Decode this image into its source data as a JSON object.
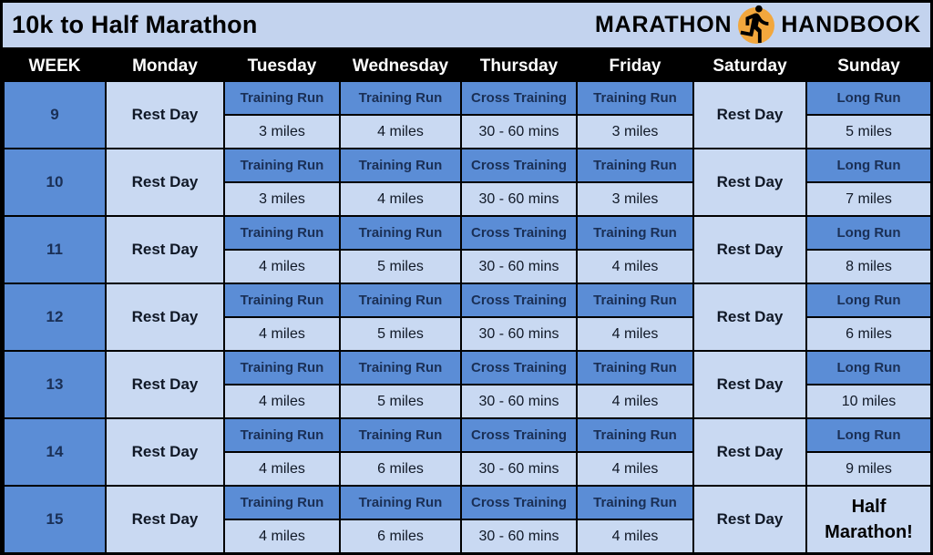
{
  "title": "10k to Half Marathon",
  "logo": {
    "left": "MARATHON",
    "right": "HANDBOOK",
    "icon": "runner-icon"
  },
  "columns": [
    "WEEK",
    "Monday",
    "Tuesday",
    "Wednesday",
    "Thursday",
    "Friday",
    "Saturday",
    "Sunday"
  ],
  "colors": {
    "title_bg": "#c3d3ee",
    "header_bg": "#000000",
    "header_text": "#ffffff",
    "medium_blue": "#5b8dd6",
    "light_blue": "#c9d9f2",
    "navy_text": "#1a2f55",
    "dark_text": "#101826",
    "logo_circle": "#f2a73d",
    "border": "#000000"
  },
  "weeks": [
    {
      "week": "9",
      "monday": "Rest Day",
      "tuesday": {
        "activity": "Training Run",
        "detail": "3 miles"
      },
      "wednesday": {
        "activity": "Training Run",
        "detail": "4 miles"
      },
      "thursday": {
        "activity": "Cross Training",
        "detail": "30 - 60 mins"
      },
      "friday": {
        "activity": "Training Run",
        "detail": "3 miles"
      },
      "saturday": "Rest Day",
      "sunday": {
        "activity": "Long Run",
        "detail": "5 miles"
      }
    },
    {
      "week": "10",
      "monday": "Rest Day",
      "tuesday": {
        "activity": "Training Run",
        "detail": "3 miles"
      },
      "wednesday": {
        "activity": "Training Run",
        "detail": "4 miles"
      },
      "thursday": {
        "activity": "Cross Training",
        "detail": "30 - 60 mins"
      },
      "friday": {
        "activity": "Training Run",
        "detail": "3 miles"
      },
      "saturday": "Rest Day",
      "sunday": {
        "activity": "Long Run",
        "detail": "7 miles"
      }
    },
    {
      "week": "11",
      "monday": "Rest Day",
      "tuesday": {
        "activity": "Training Run",
        "detail": "4 miles"
      },
      "wednesday": {
        "activity": "Training Run",
        "detail": "5 miles"
      },
      "thursday": {
        "activity": "Cross Training",
        "detail": "30 - 60 mins"
      },
      "friday": {
        "activity": "Training Run",
        "detail": "4 miles"
      },
      "saturday": "Rest Day",
      "sunday": {
        "activity": "Long Run",
        "detail": "8 miles"
      }
    },
    {
      "week": "12",
      "monday": "Rest Day",
      "tuesday": {
        "activity": "Training Run",
        "detail": "4 miles"
      },
      "wednesday": {
        "activity": "Training Run",
        "detail": "5 miles"
      },
      "thursday": {
        "activity": "Cross Training",
        "detail": "30 - 60 mins"
      },
      "friday": {
        "activity": "Training Run",
        "detail": "4 miles"
      },
      "saturday": "Rest Day",
      "sunday": {
        "activity": "Long Run",
        "detail": "6 miles"
      }
    },
    {
      "week": "13",
      "monday": "Rest Day",
      "tuesday": {
        "activity": "Training Run",
        "detail": "4 miles"
      },
      "wednesday": {
        "activity": "Training Run",
        "detail": "5 miles"
      },
      "thursday": {
        "activity": "Cross Training",
        "detail": "30 - 60 mins"
      },
      "friday": {
        "activity": "Training Run",
        "detail": "4 miles"
      },
      "saturday": "Rest Day",
      "sunday": {
        "activity": "Long Run",
        "detail": "10 miles"
      }
    },
    {
      "week": "14",
      "monday": "Rest Day",
      "tuesday": {
        "activity": "Training Run",
        "detail": "4 miles"
      },
      "wednesday": {
        "activity": "Training Run",
        "detail": "6 miles"
      },
      "thursday": {
        "activity": "Cross Training",
        "detail": "30 - 60 mins"
      },
      "friday": {
        "activity": "Training Run",
        "detail": "4 miles"
      },
      "saturday": "Rest Day",
      "sunday": {
        "activity": "Long Run",
        "detail": "9 miles"
      }
    },
    {
      "week": "15",
      "monday": "Rest Day",
      "tuesday": {
        "activity": "Training Run",
        "detail": "4 miles"
      },
      "wednesday": {
        "activity": "Training Run",
        "detail": "6 miles"
      },
      "thursday": {
        "activity": "Cross Training",
        "detail": "30 - 60 mins"
      },
      "friday": {
        "activity": "Training Run",
        "detail": "4 miles"
      },
      "saturday": "Rest Day",
      "sunday": {
        "lines": [
          "Half",
          "Marathon!"
        ]
      }
    }
  ]
}
